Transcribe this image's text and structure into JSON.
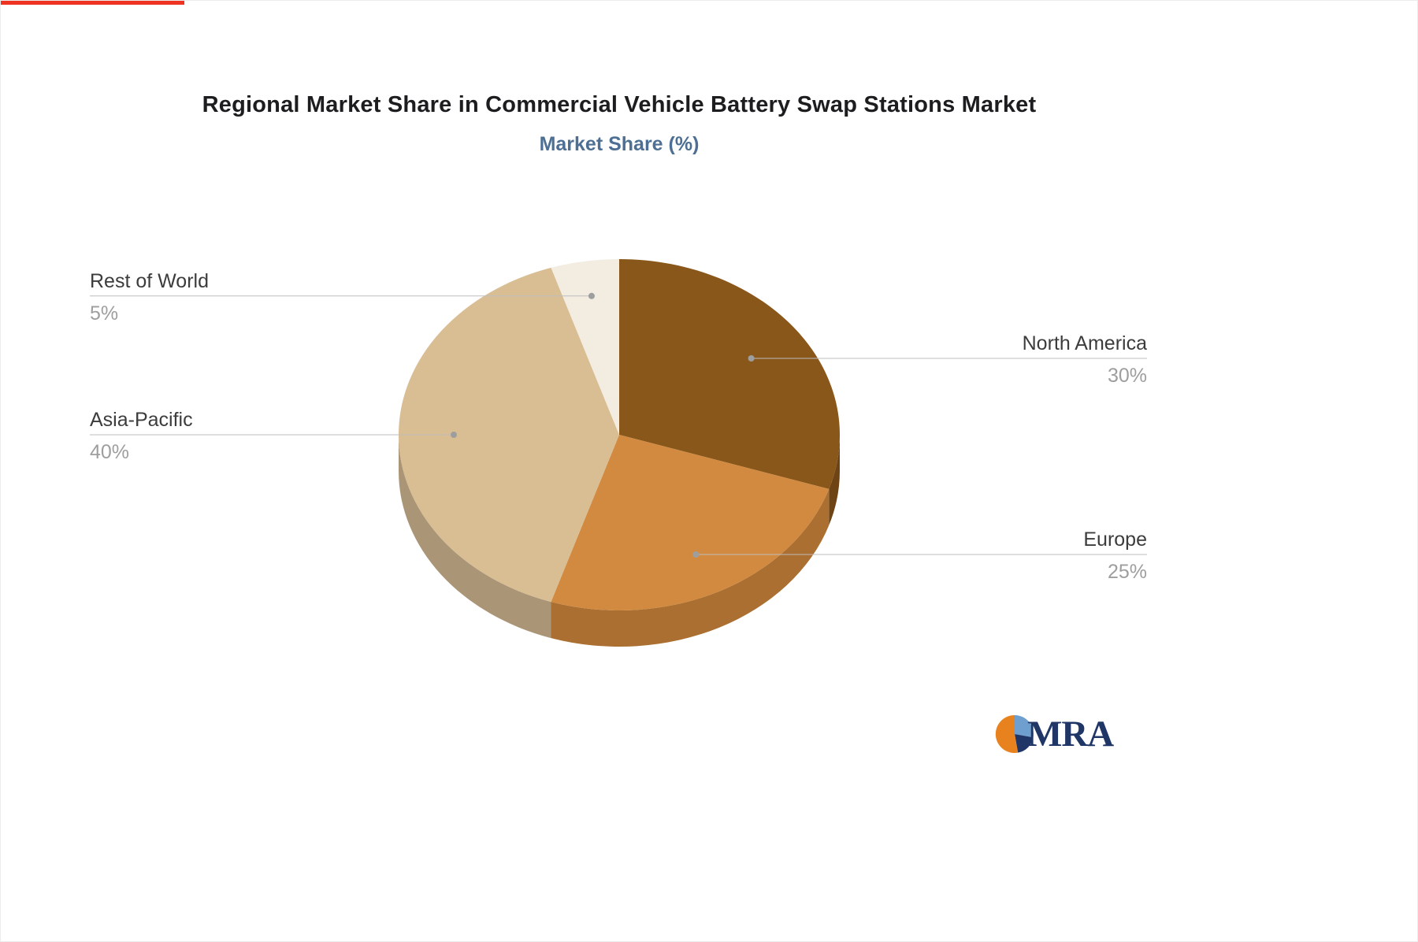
{
  "page": {
    "top_strip_color": "#ee3322",
    "background_color": "#ffffff"
  },
  "chart_data": {
    "type": "pie",
    "style": "3d-pie",
    "title": "Regional Market Share in Commercial Vehicle Battery Swap Stations Market",
    "subtitle": "Market Share (%)",
    "unit": "%",
    "categories": [
      "North America",
      "Europe",
      "Asia-Pacific",
      "Rest of World"
    ],
    "values": [
      30,
      25,
      40,
      5
    ],
    "value_labels": [
      "30%",
      "25%",
      "40%",
      "5%"
    ],
    "colors": [
      "#8a571a",
      "#d18a3f",
      "#d9bd93",
      "#f3ece1"
    ],
    "side_colors": [
      "#6e4414",
      "#aa6f31",
      "#ab9577",
      "#e0d6c8"
    ],
    "start_angle_deg": 0,
    "direction": "clockwise",
    "legend_position": "none",
    "label_style": {
      "name_color": "#3c3c3c",
      "value_color": "#9e9e9e",
      "leader_line_color": "#bdbdbd",
      "leader_dot_color": "#9e9e9e"
    }
  },
  "logo": {
    "text": "MRA",
    "orange": "#e8821e",
    "blue": "#6f9fce",
    "navy": "#1f3666"
  }
}
